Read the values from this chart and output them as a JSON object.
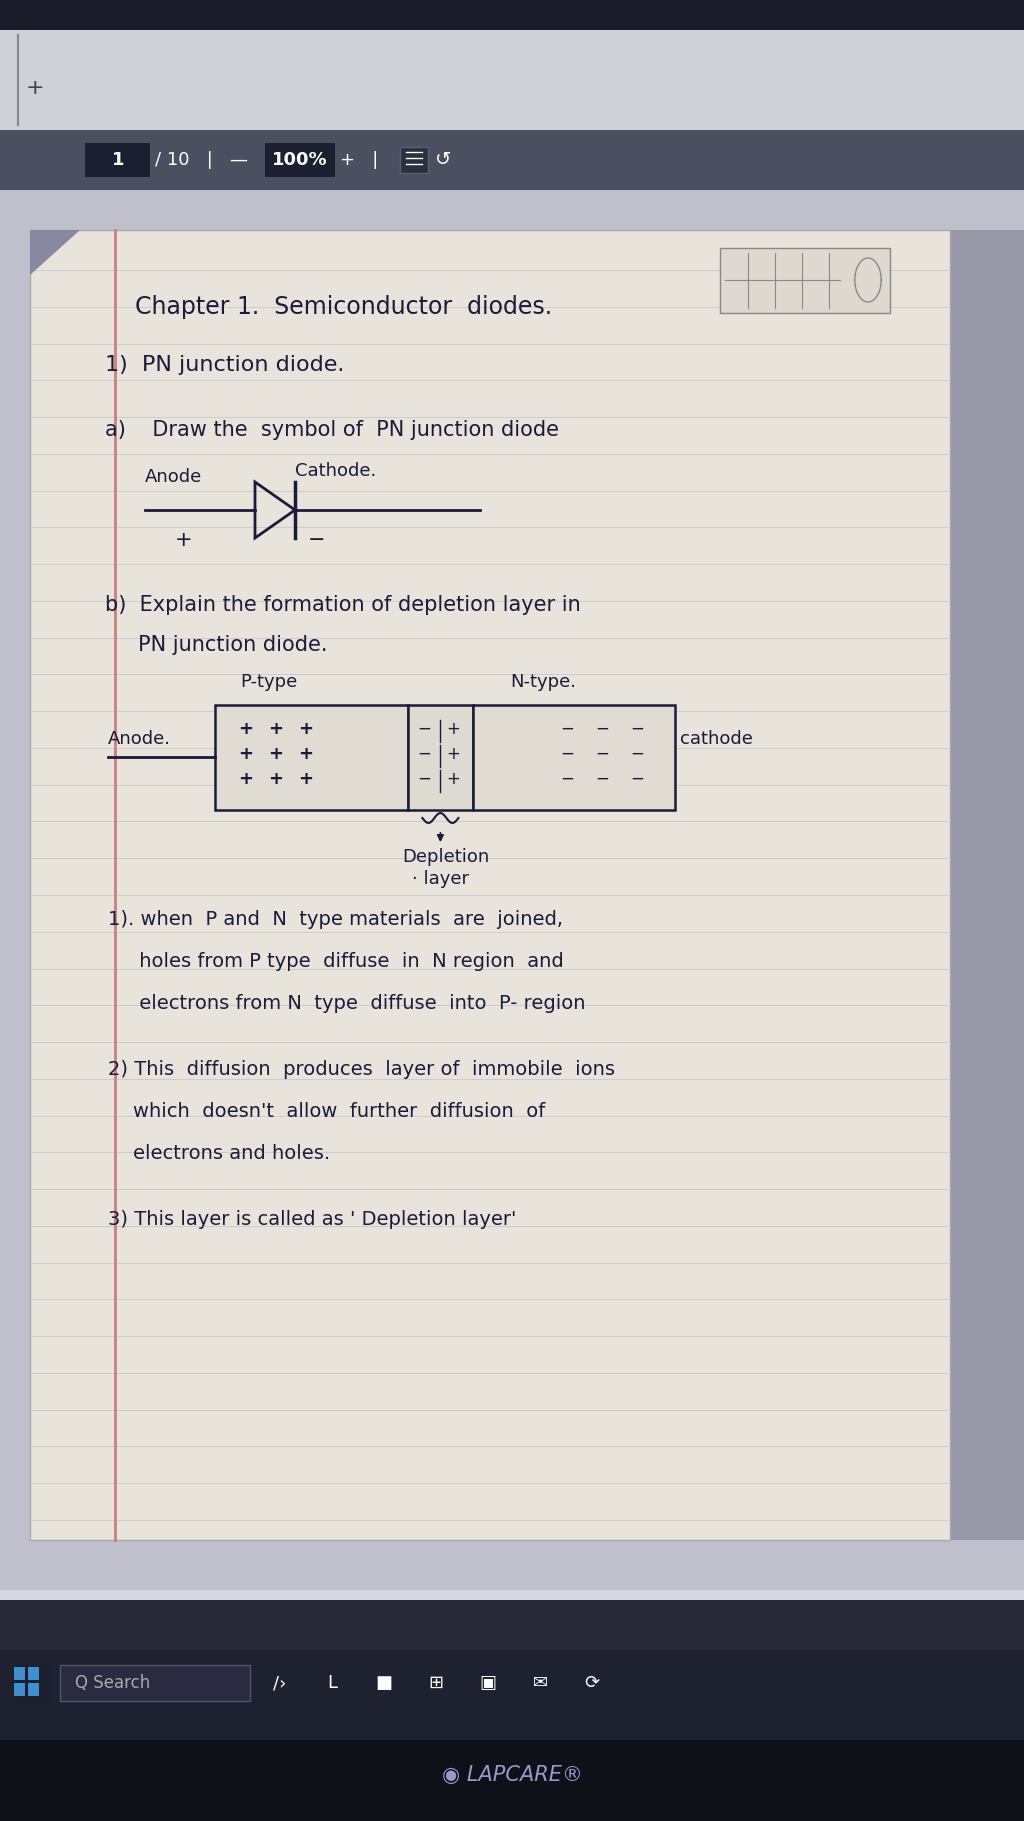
{
  "bg_top_color": "#1a1a2a",
  "bg_mid_color": "#d8d8e0",
  "bg_paper_area": "#c8c8d4",
  "paper_color": "#e8e4dc",
  "toolbar_color": "#4a5060",
  "text_color": "#1a1a3a",
  "ruled_line_color": "#b8bcc8",
  "margin_line_color": "#c88080",
  "title_line": "Chapter 1.  Semiconductor  diodes.",
  "section1": "1)  PN junction diode.",
  "qa": "a)    Draw the  symbol of  PN junction diode",
  "anode_sym": "Anode",
  "cathode_sym": "Cathode.",
  "plus_sym": "+",
  "minus_sym": "−",
  "qb1": "b)  Explain the formation of depletion layer in",
  "qb2": "     PN junction diode.",
  "ptype": "P-type",
  "ntype": "N-type.",
  "anode2": "Anode.",
  "cathode2": "cathode",
  "depletion1": "Depletion",
  "depletion2": "· layer",
  "p1a": "1). when  P and  N  type materials  are  joined,",
  "p1b": "     holes from P type  diffuse  in  N region  and",
  "p1c": "     electrons from N  type  diffuse  into  P- region",
  "p2a": "2) This  diffusion  produces  layer of  immobile  ions",
  "p2b": "    which  doesn't  allow  further  diffusion  of",
  "p2c": "    electrons and holes.",
  "p3": "3) This layer is called as ' Depletion layer'",
  "taskbar_color": "#1e2230",
  "lapcare_bar": "#101018"
}
